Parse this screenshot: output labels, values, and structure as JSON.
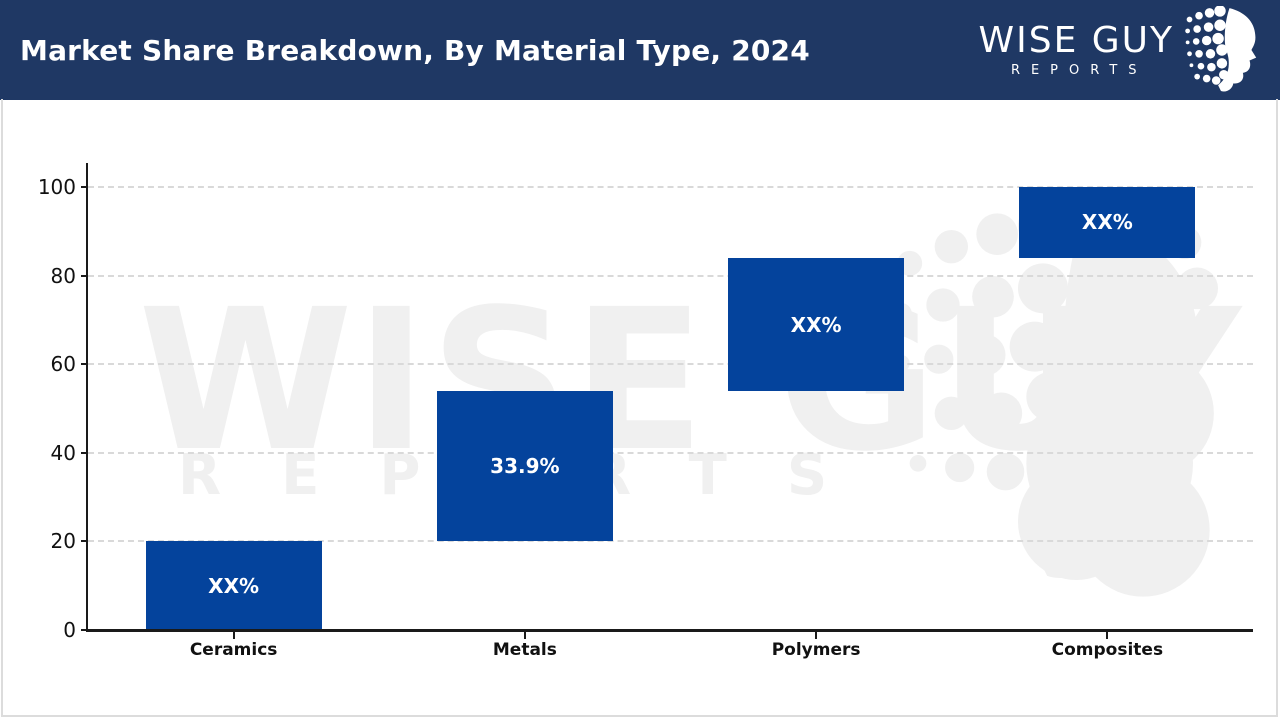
{
  "header": {
    "title": "Market Share Breakdown, By Material Type, 2024",
    "logo": {
      "line1": "WISE GUY",
      "line2": "REPORTS"
    }
  },
  "watermark": {
    "line1": "WISE GUY",
    "line2": "REPORTS"
  },
  "chart_data": {
    "type": "bar",
    "subtype": "floating-waterfall",
    "title": "Market Share Breakdown, By Material Type, 2024",
    "categories": [
      "Ceramics",
      "Metals",
      "Polymers",
      "Composites"
    ],
    "segments": [
      {
        "category": "Ceramics",
        "start": 0,
        "end": 20,
        "label": "XX%"
      },
      {
        "category": "Metals",
        "start": 20,
        "end": 53.9,
        "label": "33.9%"
      },
      {
        "category": "Polymers",
        "start": 53.9,
        "end": 84,
        "label": "XX%"
      },
      {
        "category": "Composites",
        "start": 84,
        "end": 100,
        "label": "XX%"
      }
    ],
    "yticks": [
      0,
      20,
      40,
      60,
      80,
      100
    ],
    "ylim": [
      0,
      100
    ],
    "xlabel": "",
    "ylabel": "",
    "grid": "horizontal-dashed",
    "legend": "none"
  },
  "colors": {
    "header_bg": "#1f3864",
    "bar": "#04439c",
    "bar_label": "#ffffff",
    "grid": "#d9d9d9",
    "axis": "#1a1a1a",
    "watermark": "#f0f0f0"
  }
}
